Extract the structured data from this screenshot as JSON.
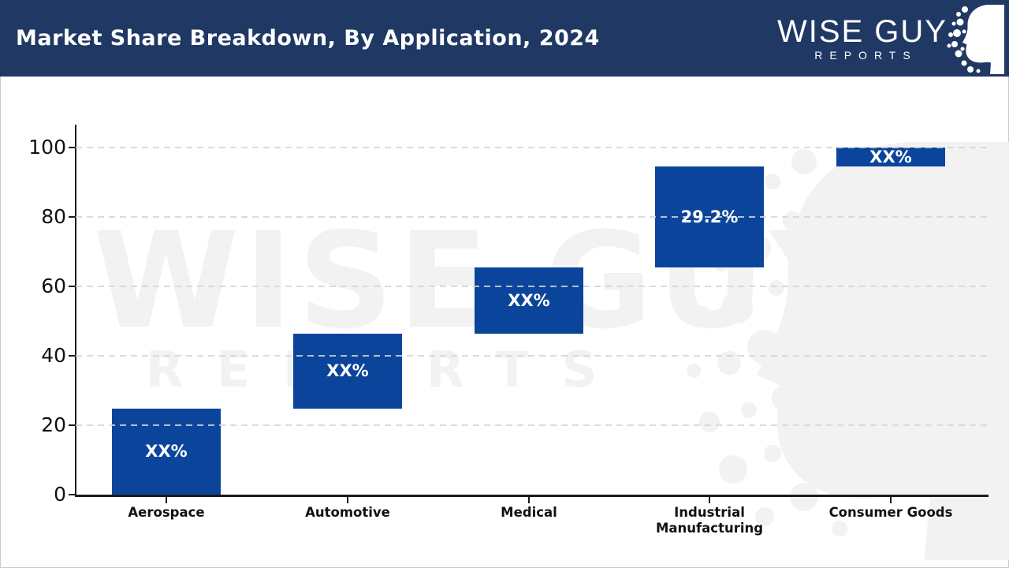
{
  "header": {
    "title": "Market Share Breakdown, By Application, 2024",
    "logo": {
      "line1": "WISE GUY",
      "line2": "REPORTS"
    }
  },
  "watermark": {
    "line1": "WISE GUY",
    "line2": "REPORTS"
  },
  "colors": {
    "header_bg": "#1f3864",
    "bar": "#0b459b",
    "grid": "#d5d5d5",
    "axis": "#1a1a1a",
    "bar_label_text": "#ffffff",
    "watermark": "#f2f2f2",
    "background": "#ffffff"
  },
  "chart_data": {
    "type": "bar",
    "variant": "waterfall",
    "title": "Market Share Breakdown, By Application, 2024",
    "categories": [
      "Aerospace",
      "Automotive",
      "Medical",
      "Industrial Manufacturing",
      "Consumer Goods"
    ],
    "starts": [
      0,
      24.8,
      46.4,
      65.4,
      94.6
    ],
    "values": [
      24.8,
      21.6,
      19.0,
      29.2,
      5.4
    ],
    "bar_labels": [
      "XX%",
      "XX%",
      "XX%",
      "29.2%",
      "XX%"
    ],
    "yticks": [
      0,
      20,
      40,
      60,
      80,
      100
    ],
    "ylim": [
      0,
      105
    ],
    "xlabel": "",
    "ylabel": "",
    "grid": "dashed horizontal, drawn above bars",
    "legend": "none"
  }
}
